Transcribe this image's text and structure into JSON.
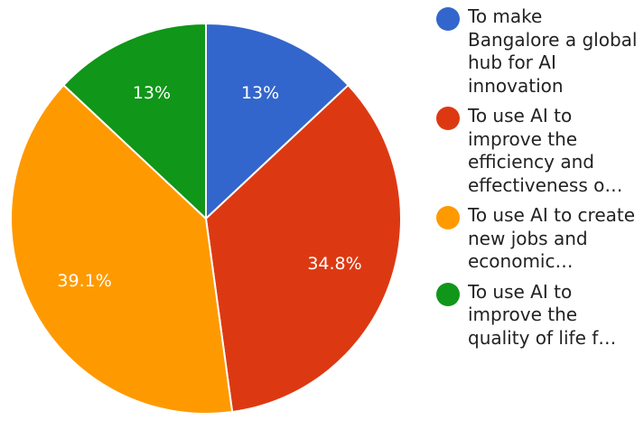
{
  "chart_data": {
    "type": "pie",
    "categories": [
      "To make Bangalore a global hub for AI innovation",
      "To use AI to improve the efficiency and effectiveness o…",
      "To use AI to create new jobs and economic…",
      "To use AI to improve the quality of life f…"
    ],
    "values": [
      13.0,
      34.8,
      39.1,
      13.0
    ],
    "labels": [
      "13%",
      "34.8%",
      "39.1%",
      "13%"
    ],
    "colors": [
      "#3366cc",
      "#dc3912",
      "#ff9900",
      "#109618"
    ],
    "legend_position": "right"
  }
}
